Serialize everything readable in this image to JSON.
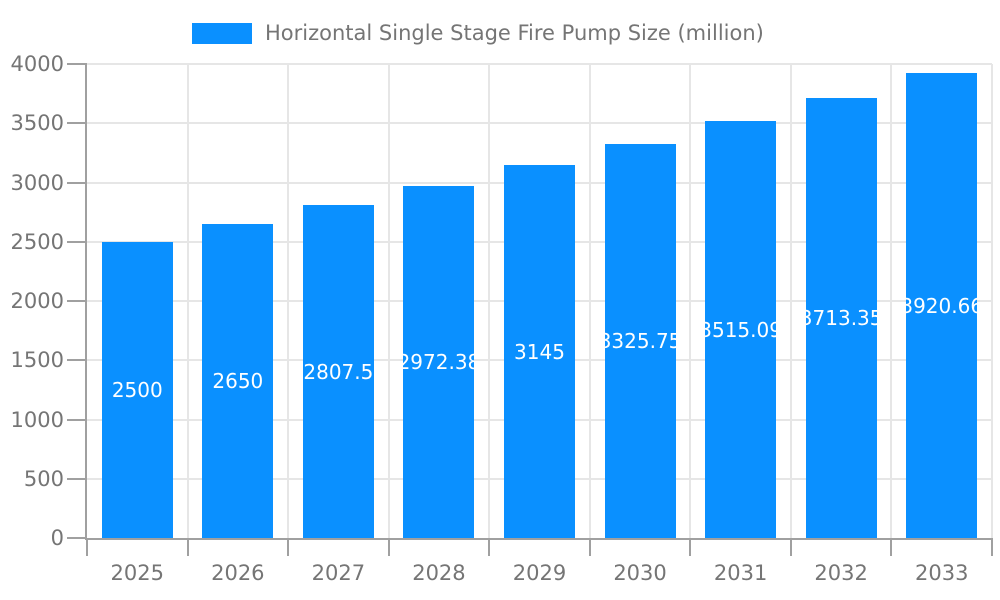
{
  "chart_data": {
    "type": "bar",
    "title": "Horizontal Single Stage Fire Pump Size (million)",
    "legend": {
      "label": "Horizontal Single Stage Fire Pump Size (million)",
      "position": "top",
      "swatch_color": "#0a90ff"
    },
    "categories": [
      "2025",
      "2026",
      "2027",
      "2028",
      "2029",
      "2030",
      "2031",
      "2032",
      "2033"
    ],
    "series": [
      {
        "name": "Horizontal Single Stage Fire Pump Size (million)",
        "values": [
          2500,
          2650,
          2807.5,
          2972.38,
          3145,
          3325.75,
          3515.09,
          3713.35,
          3920.66
        ]
      }
    ],
    "value_labels": [
      "2500",
      "2650",
      "2807.5",
      "2972.38",
      "3145",
      "3325.75",
      "3515.09",
      "3713.35",
      "3920.66"
    ],
    "xlabel": "",
    "ylabel": "",
    "ylim": [
      0,
      4000
    ],
    "y_tick_values": [
      0,
      500,
      1000,
      1500,
      2000,
      2500,
      3000,
      3500,
      4000
    ],
    "y_tick_labels": [
      "0",
      "500",
      "1000",
      "1500",
      "2000",
      "2500",
      "3000",
      "3500",
      "4000"
    ],
    "grid": true,
    "colors": {
      "bar": "#0a90ff",
      "grid": "#e6e6e6",
      "axis": "#a0a0a0",
      "label_text": "#757575",
      "value_text": "#ffffff",
      "background": "#ffffff"
    }
  }
}
